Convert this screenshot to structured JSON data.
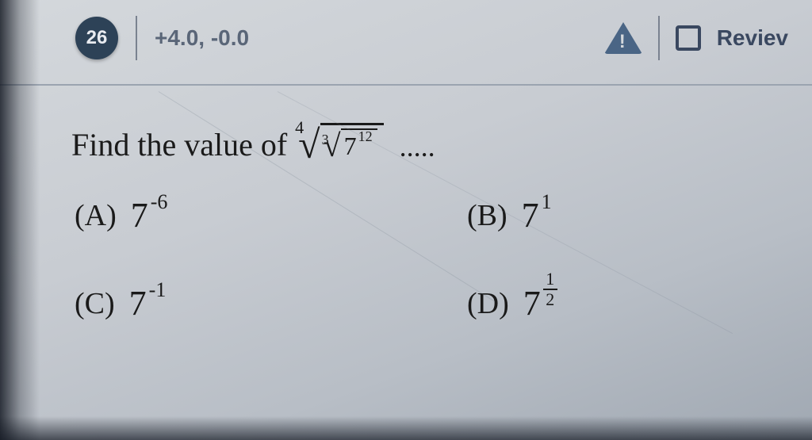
{
  "header": {
    "question_number": "26",
    "marks": "+4.0, -0.0",
    "review_label": "Reviev"
  },
  "question": {
    "prefix": "Find the value of",
    "outer_root_index": "4",
    "inner_root_index": "3",
    "base": "7",
    "exponent": "12",
    "suffix": "....."
  },
  "options": {
    "a": {
      "letter": "(A)",
      "base": "7",
      "exp": "-6"
    },
    "b": {
      "letter": "(B)",
      "base": "7",
      "exp": "1"
    },
    "c": {
      "letter": "(C)",
      "base": "7",
      "exp": "-1"
    },
    "d": {
      "letter": "(D)",
      "base": "7",
      "frac_num": "1",
      "frac_den": "2"
    }
  },
  "colors": {
    "badge_bg": "#2d4257",
    "text_dark": "#1a1a1a",
    "header_text": "#5a6678",
    "accent": "#3a4860"
  }
}
